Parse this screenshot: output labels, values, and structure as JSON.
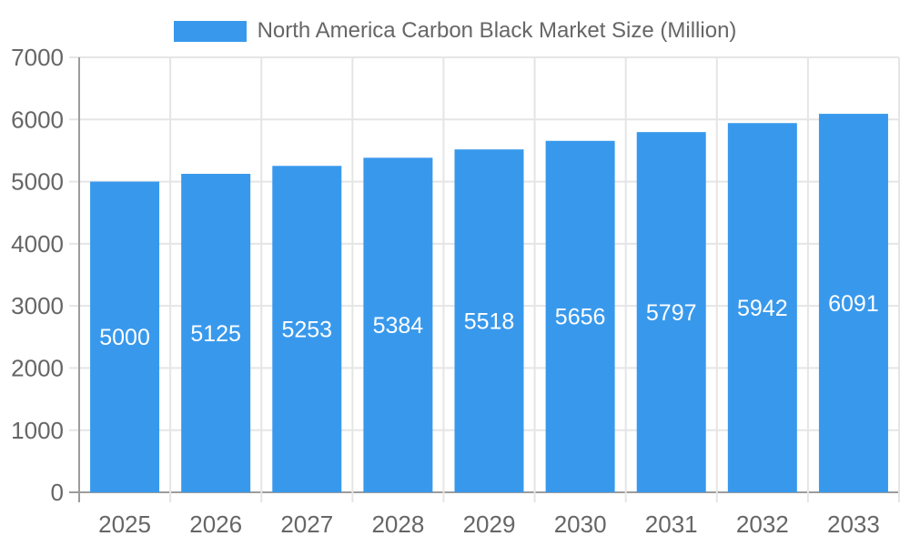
{
  "chart_data": {
    "type": "bar",
    "title": "North America Carbon Black Market Size (Million)",
    "categories": [
      "2025",
      "2026",
      "2027",
      "2028",
      "2029",
      "2030",
      "2031",
      "2032",
      "2033"
    ],
    "values": [
      5000,
      5125,
      5253,
      5384,
      5518,
      5656,
      5797,
      5942,
      6091
    ],
    "ylim": [
      0,
      7000
    ],
    "y_tick_step": 1000,
    "y_tick_labels": [
      "0",
      "1000",
      "2000",
      "3000",
      "4000",
      "5000",
      "6000",
      "7000"
    ],
    "grid": true,
    "legend_position": "top",
    "colors": {
      "bar": "#3899EC",
      "bar_label": "#FFFFFF",
      "axis_text": "#666666",
      "gridline": "#E5E5E5",
      "axis_line": "#9C9C9C"
    }
  }
}
